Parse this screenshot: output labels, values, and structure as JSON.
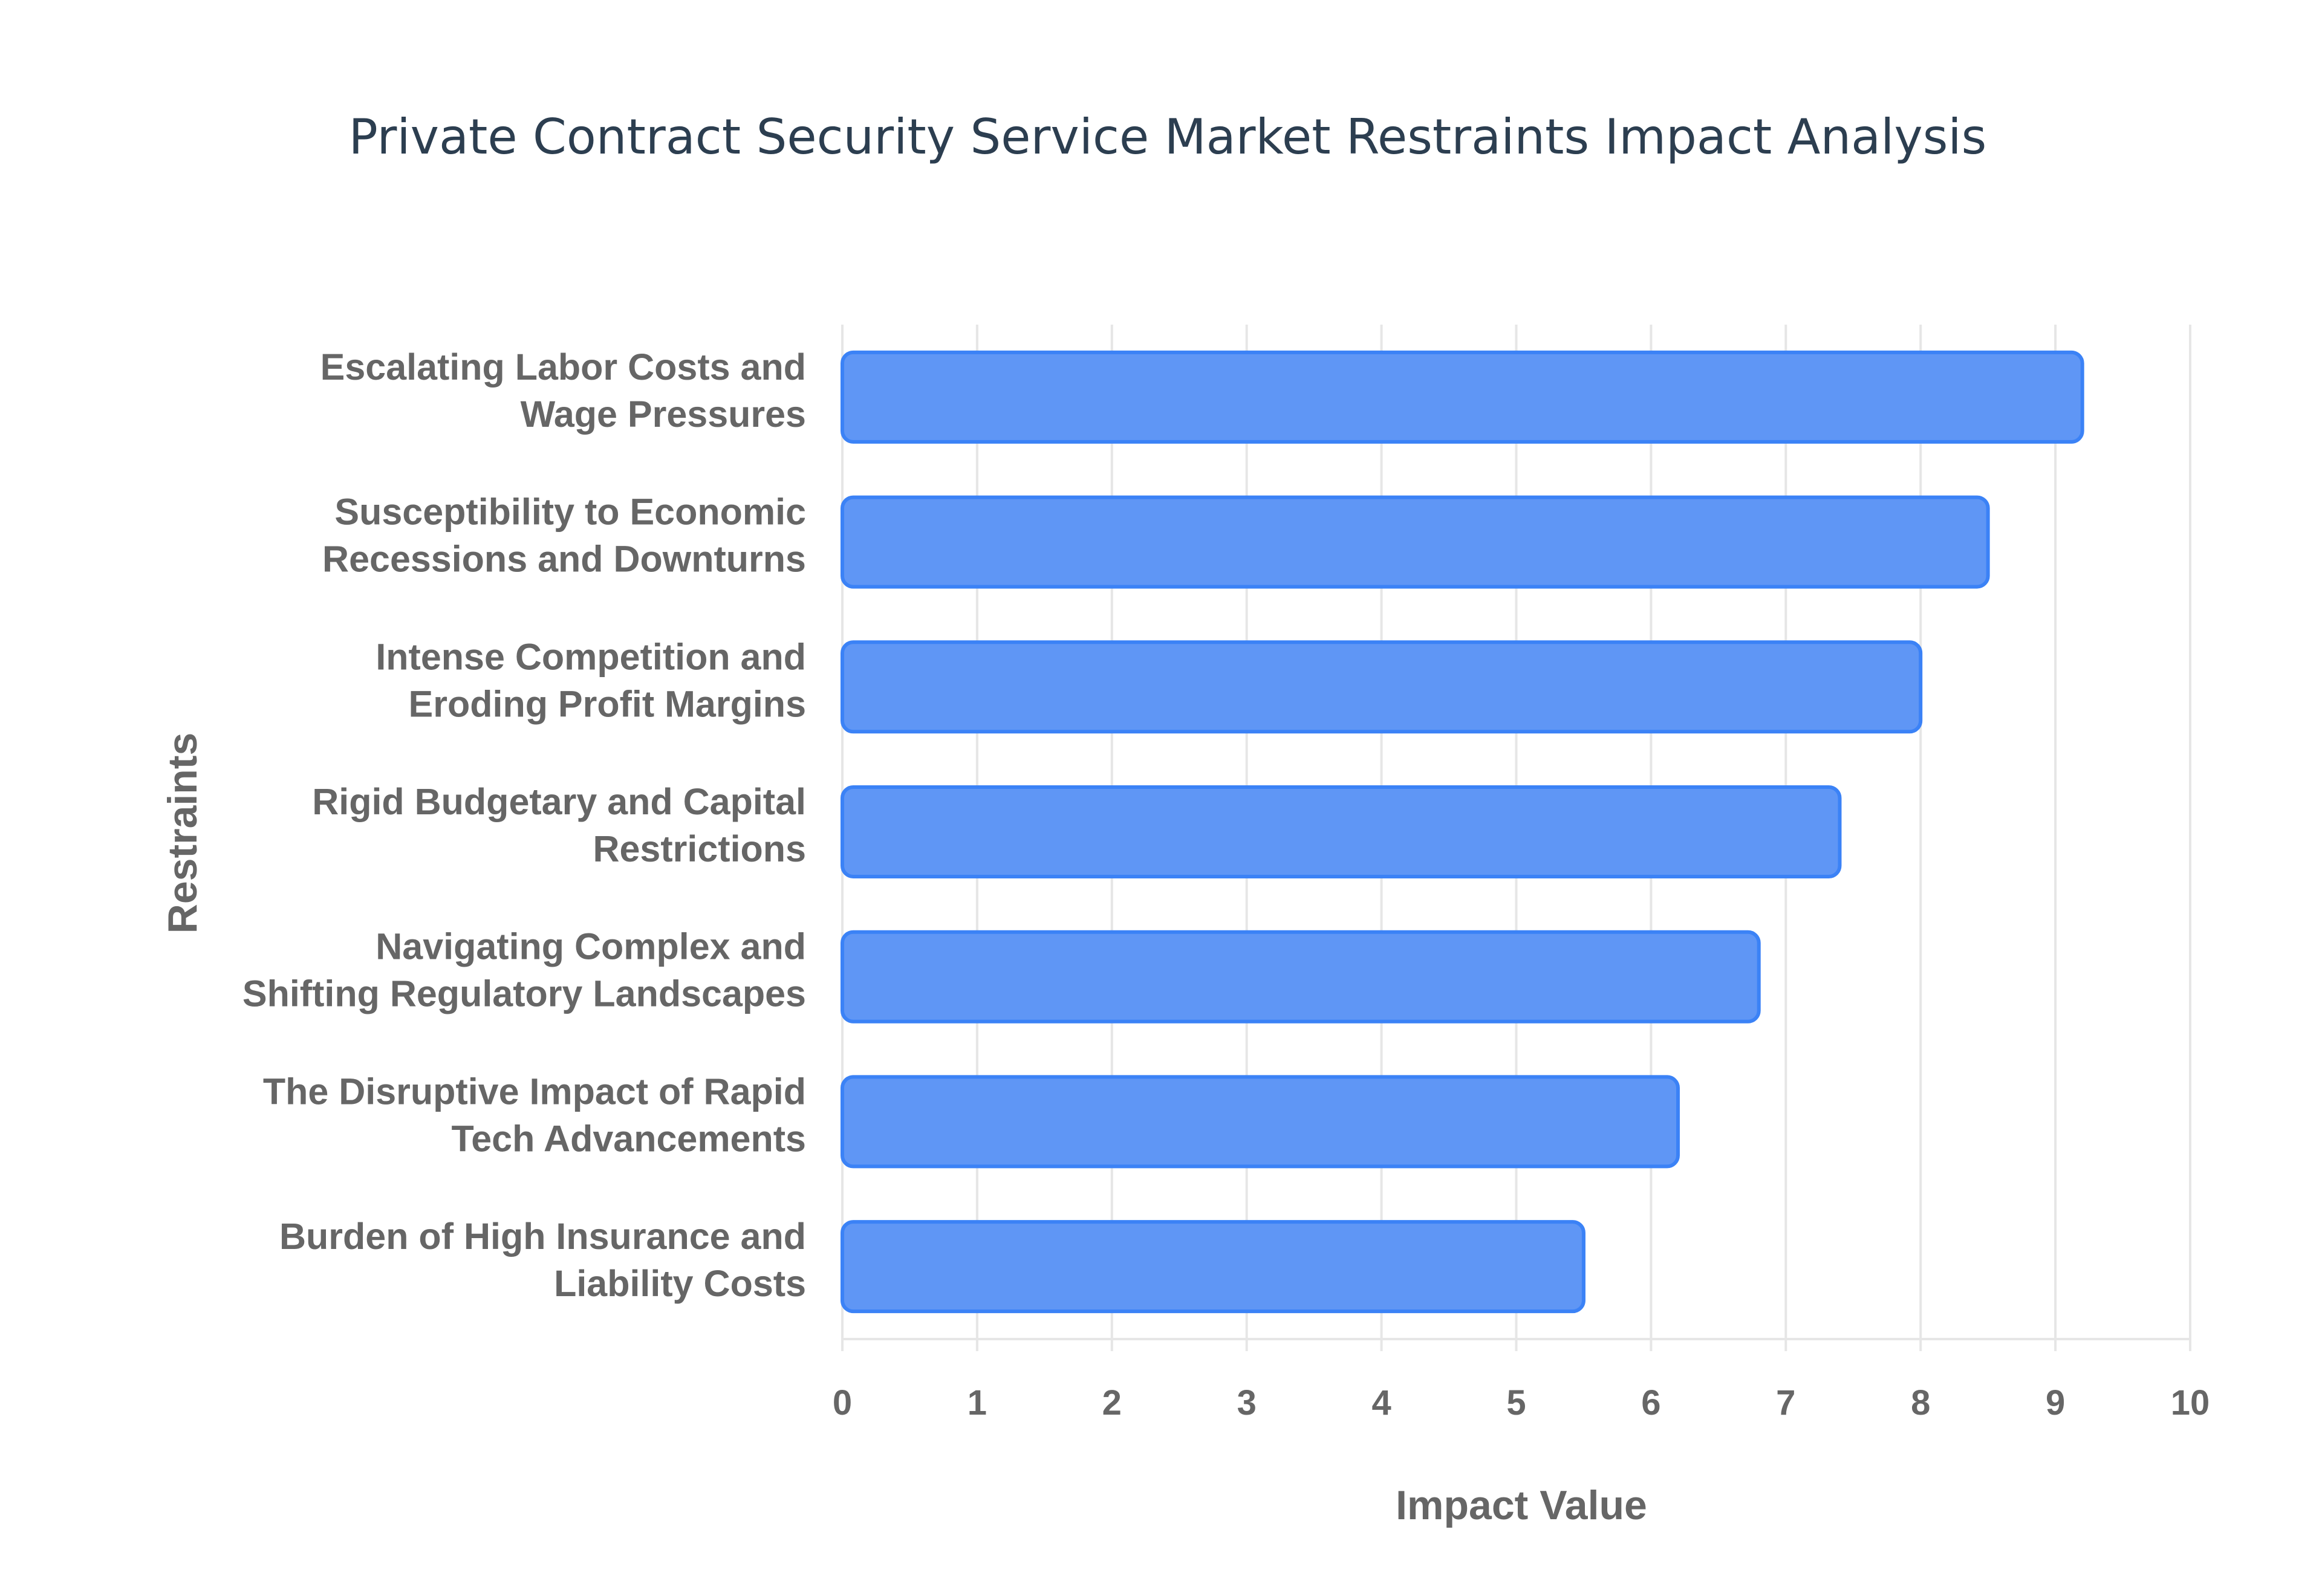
{
  "chart_data": {
    "type": "bar",
    "orientation": "horizontal",
    "title": "Private Contract Security Service Market Restraints Impact Analysis",
    "xlabel": "Impact Value",
    "ylabel": "Restraints",
    "xlim": [
      0,
      10
    ],
    "xticks": [
      "0",
      "1",
      "2",
      "3",
      "4",
      "5",
      "6",
      "7",
      "8",
      "9",
      "10"
    ],
    "grid": true,
    "legend": "none",
    "categories": [
      [
        "Escalating Labor Costs and",
        "Wage Pressures"
      ],
      [
        "Susceptibility to Economic",
        "Recessions and Downturns"
      ],
      [
        "Intense Competition and",
        "Eroding Profit Margins"
      ],
      [
        "Rigid Budgetary and Capital",
        "Restrictions"
      ],
      [
        "Navigating Complex and",
        "Shifting Regulatory Landscapes"
      ],
      [
        "The Disruptive Impact of Rapid",
        "Tech Advancements"
      ],
      [
        "Burden of High Insurance and",
        "Liability Costs"
      ]
    ],
    "values": [
      9.2,
      8.5,
      8.0,
      7.4,
      6.8,
      6.2,
      5.5
    ],
    "colors": {
      "bar_fill": "#5f96f5",
      "bar_border": "#3b82f6",
      "grid": "#e6e6e6",
      "text": "#666666",
      "title": "#2c3e50"
    }
  }
}
